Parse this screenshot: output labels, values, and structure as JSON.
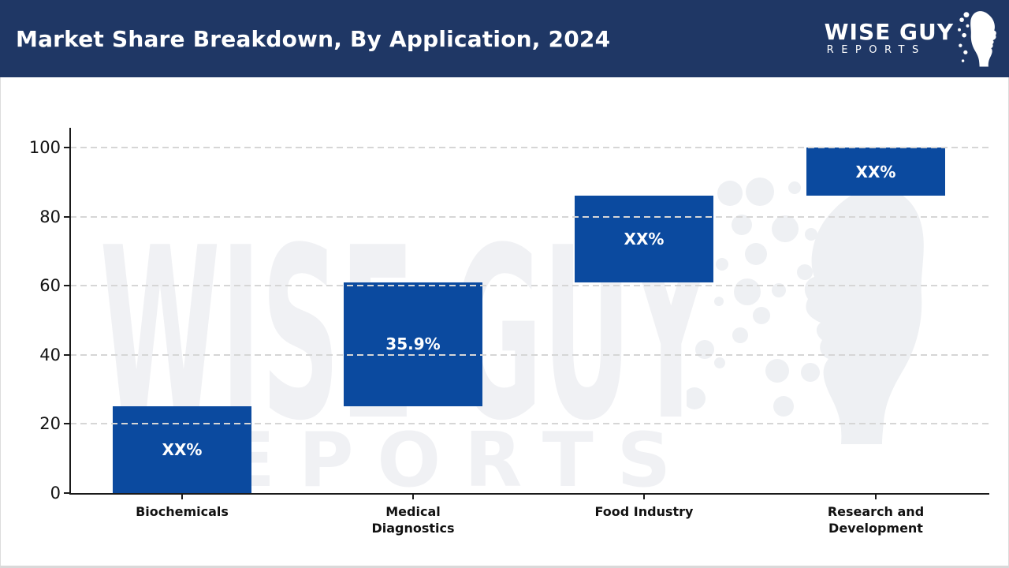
{
  "header": {
    "title": "Market Share Breakdown, By Application, 2024",
    "logo": {
      "line1": "WISE GUY",
      "line2": "REPORTS"
    }
  },
  "watermark": {
    "line1": "WISE GUY",
    "line2": "REPORTS"
  },
  "colors": {
    "header_bg": "#1f3765",
    "bar": "#0b4a9f",
    "grid": "#d6d6d6",
    "axis": "#1a1a1a",
    "watermark": "#f0f1f4",
    "bar_label": "#ffffff"
  },
  "chart_data": {
    "type": "bar",
    "variant": "waterfall",
    "title": "Market Share Breakdown, By Application, 2024",
    "categories": [
      "Biochemicals",
      "Medical Diagnostics",
      "Food Industry",
      "Research and Development"
    ],
    "category_lines": [
      [
        "Biochemicals"
      ],
      [
        "Medical",
        "Diagnostics"
      ],
      [
        "Food Industry"
      ],
      [
        "Research and",
        "Development"
      ]
    ],
    "segments": [
      {
        "category": "Biochemicals",
        "start": 0,
        "end": 25.1,
        "label": "XX%"
      },
      {
        "category": "Medical Diagnostics",
        "start": 25.1,
        "end": 61.0,
        "label": "35.9%"
      },
      {
        "category": "Food Industry",
        "start": 61.0,
        "end": 86.0,
        "label": "XX%"
      },
      {
        "category": "Research and Development",
        "start": 86.0,
        "end": 100.0,
        "label": "XX%"
      }
    ],
    "ylim": [
      0,
      100
    ],
    "yticks": [
      0,
      20,
      40,
      60,
      80,
      100
    ],
    "xlabel": "",
    "ylabel": "",
    "legend": "none",
    "grid": {
      "orientation": "horizontal",
      "style": "dashed",
      "drawn_above_bars": true
    },
    "bar_color": "#0b4a9f",
    "bar_label_color": "#ffffff"
  }
}
